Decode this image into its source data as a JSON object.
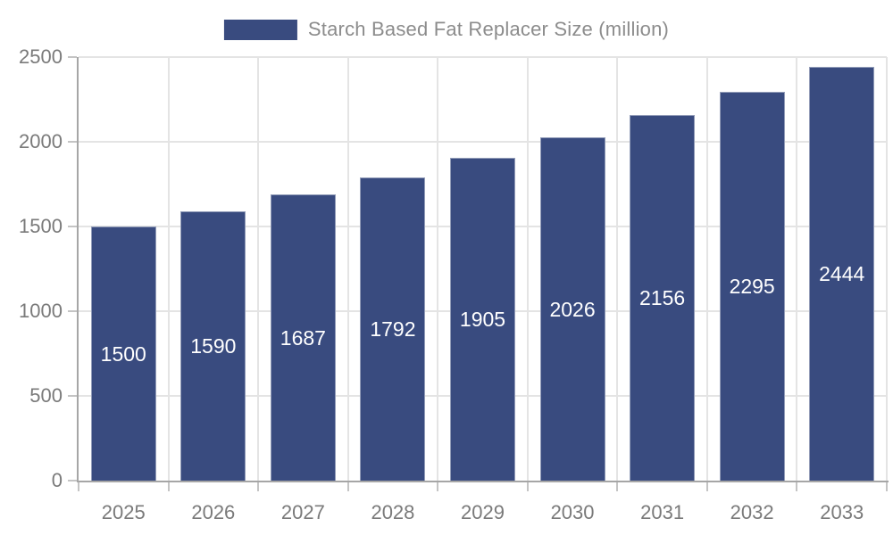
{
  "chart_data": {
    "type": "bar",
    "title": "Starch Based Fat Replacer Size (million)",
    "legend": {
      "label": "Starch Based Fat Replacer Size (million)",
      "position": "top-center"
    },
    "categories": [
      "2025",
      "2026",
      "2027",
      "2028",
      "2029",
      "2030",
      "2031",
      "2032",
      "2033"
    ],
    "series": [
      {
        "name": "Starch Based Fat Replacer Size (million)",
        "values": [
          1500,
          1590,
          1687,
          1792,
          1905,
          2026,
          2156,
          2295,
          2444
        ]
      }
    ],
    "bar_value_labels": [
      "1500",
      "1590",
      "1687",
      "1792",
      "1905",
      "2026",
      "2156",
      "2295",
      "2444"
    ],
    "xlabel": "",
    "ylabel": "",
    "ylim": [
      0,
      2500
    ],
    "yticks": [
      0,
      500,
      1000,
      1500,
      2000,
      2500
    ],
    "grid": true,
    "legend_position": "top",
    "colors": {
      "bar": "#394B7F",
      "bar_label": "#FFFFFF",
      "grid": "#E4E4E4",
      "axis": "#A6A6A6",
      "tick_mark": "#C4C4C4",
      "tick_label": "#7A7A7A",
      "legend_text": "#8C8C8C",
      "background": "#FFFFFF"
    }
  }
}
